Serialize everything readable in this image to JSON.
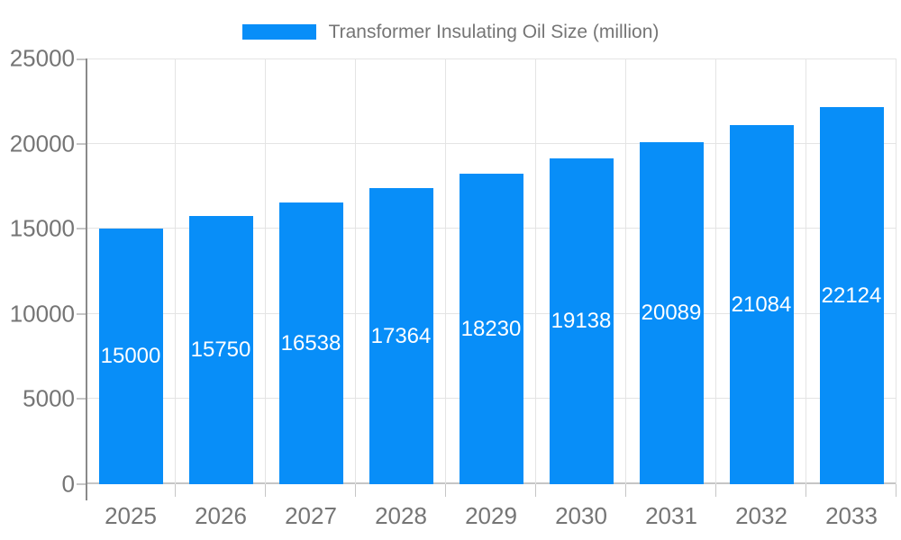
{
  "chart_data": {
    "type": "bar",
    "title": "Transformer Insulating Oil Size (million)",
    "categories": [
      "2025",
      "2026",
      "2027",
      "2028",
      "2029",
      "2030",
      "2031",
      "2032",
      "2033"
    ],
    "values": [
      15000,
      15750,
      16538,
      17364,
      18230,
      19138,
      20089,
      21084,
      22124
    ],
    "xlabel": "",
    "ylabel": "",
    "ylim": [
      0,
      25000
    ],
    "ytick_step": 5000,
    "ytick_labels": [
      "0",
      "5000",
      "10000",
      "15000",
      "20000",
      "25000"
    ],
    "grid": true,
    "legend_position": "top",
    "value_labels": "inside-bar-centered"
  },
  "colors": {
    "bar": "#088ef8",
    "grid": "#e4e4e4",
    "zero": "#c6c6c6",
    "tick": "#c6c6c6",
    "axis": "#8a8a8a",
    "text": "#757575",
    "value_label": "#ffffff"
  }
}
